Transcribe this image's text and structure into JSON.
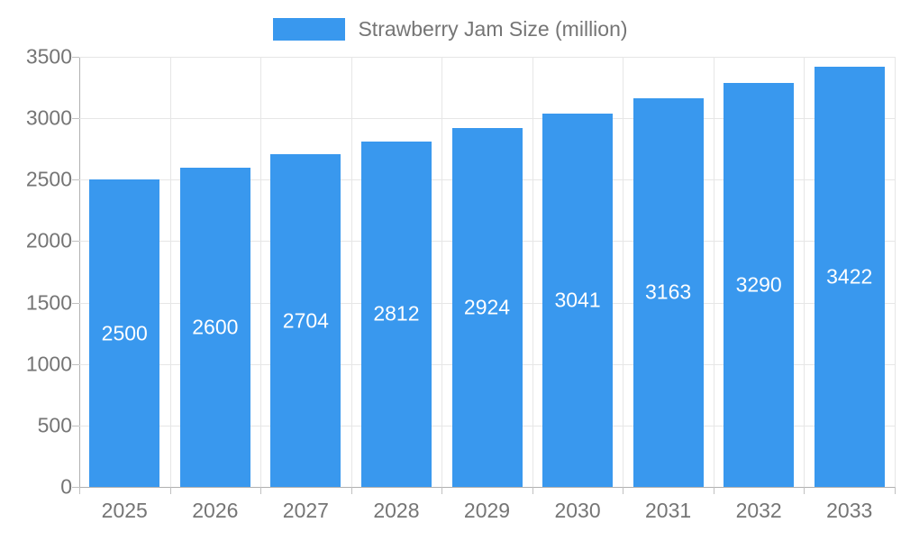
{
  "chart_data": {
    "type": "bar",
    "title": "Strawberry Jam Size (million)",
    "categories": [
      "2025",
      "2026",
      "2027",
      "2028",
      "2029",
      "2030",
      "2031",
      "2032",
      "2033"
    ],
    "values": [
      2500,
      2600,
      2704,
      2812,
      2924,
      3041,
      3163,
      3290,
      3422
    ],
    "xlabel": "",
    "ylabel": "",
    "ylim": [
      0,
      3500
    ],
    "ytick_step": 500,
    "grid": true,
    "legend_position": "top-center",
    "value_labels": "centered-in-bar",
    "colors": {
      "bar": "#3998EE",
      "axis_text": "#757575",
      "value_label": "#ffffff",
      "gridline": "#e6e6e6",
      "axis_line": "#b0b0b0"
    }
  }
}
